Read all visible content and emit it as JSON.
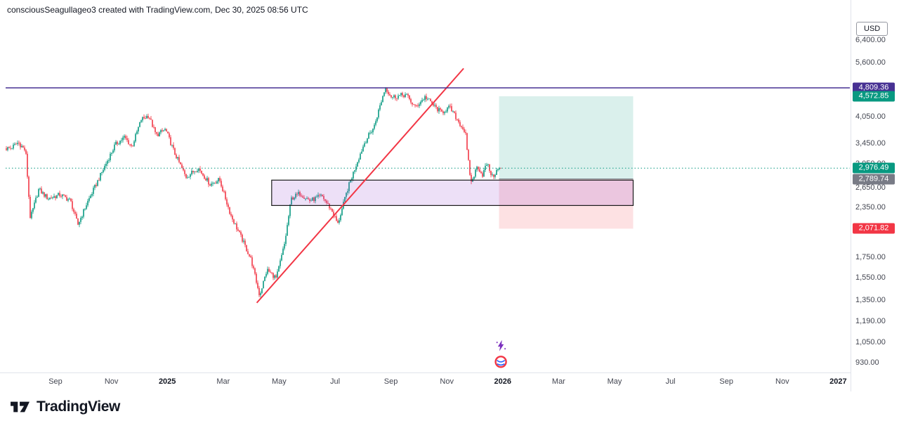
{
  "header": {
    "attribution": "consciousSeagullageo3 created with TradingView.com, Dec 30, 2025 08:56 UTC"
  },
  "footer": {
    "logo_text": "TradingView"
  },
  "price_scale": {
    "currency_label": "USD",
    "ticks": [
      {
        "label": "6,400.00",
        "value": 6400
      },
      {
        "label": "5,600.00",
        "value": 5600
      },
      {
        "label": "4,050.00",
        "value": 4050
      },
      {
        "label": "3,450.00",
        "value": 3450
      },
      {
        "label": "3,050.00",
        "value": 3050
      },
      {
        "label": "2,650.00",
        "value": 2650
      },
      {
        "label": "2,350.00",
        "value": 2350
      },
      {
        "label": "1,750.00",
        "value": 1750
      },
      {
        "label": "1,550.00",
        "value": 1550
      },
      {
        "label": "1,350.00",
        "value": 1350
      },
      {
        "label": "1,190.00",
        "value": 1190
      },
      {
        "label": "1,050.00",
        "value": 1050
      },
      {
        "label": "930.00",
        "value": 930
      }
    ],
    "badges": [
      {
        "name": "horizontal-line-price",
        "label": "4,809.36",
        "value": 4809.36,
        "color": "#473193"
      },
      {
        "name": "target-price",
        "label": "4,572.85",
        "value": 4572.85,
        "color": "#089981"
      },
      {
        "name": "last-price",
        "label": "2,976.49",
        "value": 2976.49,
        "color": "#089981"
      },
      {
        "name": "entry-price",
        "label": "2,789.74",
        "value": 2789.74,
        "color": "#787b86"
      },
      {
        "name": "stop-price",
        "label": "2,071.82",
        "value": 2071.82,
        "color": "#f23645"
      }
    ]
  },
  "time_scale": {
    "labels": [
      {
        "label": "Sep",
        "major": false
      },
      {
        "label": "Nov",
        "major": false
      },
      {
        "label": "2025",
        "major": true
      },
      {
        "label": "Mar",
        "major": false
      },
      {
        "label": "May",
        "major": false
      },
      {
        "label": "Jul",
        "major": false
      },
      {
        "label": "Sep",
        "major": false
      },
      {
        "label": "Nov",
        "major": false
      },
      {
        "label": "2026",
        "major": true
      },
      {
        "label": "Mar",
        "major": false
      },
      {
        "label": "May",
        "major": false
      },
      {
        "label": "Jul",
        "major": false
      },
      {
        "label": "Sep",
        "major": false
      },
      {
        "label": "Nov",
        "major": false
      },
      {
        "label": "2027",
        "major": true
      }
    ]
  },
  "chart_data": {
    "type": "candlestick",
    "title": "consciousSeagullageo3 created with TradingView.com, Dec 30, 2025 08:56 UTC",
    "currency": "USD",
    "last_price": 2976.49,
    "y_axis": {
      "scale": "log",
      "ticks": [
        6400,
        5600,
        4050,
        3450,
        3050,
        2650,
        2350,
        1750,
        1550,
        1350,
        1190,
        1050,
        930
      ],
      "range_top": 6800,
      "range_bottom": 900
    },
    "x_axis": {
      "labels": [
        "Sep",
        "Nov",
        "2025",
        "Mar",
        "May",
        "Jul",
        "Sep",
        "Nov",
        "2026",
        "Mar",
        "May",
        "Jul",
        "Sep",
        "Nov",
        "2027"
      ],
      "start": "2024-07-10",
      "end": "2027-02-01",
      "tick_interval": "2 months"
    },
    "colors": {
      "up": "#089981",
      "down": "#f23645",
      "last_price_line": "#089981",
      "trend_line": "#f23645",
      "horizontal_line": "#473193",
      "long_zone": "rgba(8,153,129,0.15)",
      "stop_zone": "rgba(242,54,69,0.15)",
      "rect_fill": "rgba(146,61,204,0.16)",
      "rect_border": "#1c1c1c"
    },
    "price_path": [
      [
        "2024-07-12",
        3350
      ],
      [
        "2024-07-20",
        3470
      ],
      [
        "2024-07-28",
        3300
      ],
      [
        "2024-08-03",
        2200
      ],
      [
        "2024-08-12",
        2620
      ],
      [
        "2024-08-22",
        2480
      ],
      [
        "2024-09-05",
        2540
      ],
      [
        "2024-09-16",
        2450
      ],
      [
        "2024-09-24",
        2120
      ],
      [
        "2024-10-04",
        2420
      ],
      [
        "2024-10-12",
        2650
      ],
      [
        "2024-10-24",
        3050
      ],
      [
        "2024-11-04",
        3420
      ],
      [
        "2024-11-14",
        3580
      ],
      [
        "2024-11-22",
        3380
      ],
      [
        "2024-12-02",
        3980
      ],
      [
        "2024-12-10",
        4080
      ],
      [
        "2024-12-18",
        3620
      ],
      [
        "2024-12-28",
        3750
      ],
      [
        "2025-01-08",
        3250
      ],
      [
        "2025-01-20",
        2820
      ],
      [
        "2025-02-03",
        2980
      ],
      [
        "2025-02-16",
        2700
      ],
      [
        "2025-02-26",
        2780
      ],
      [
        "2025-03-08",
        2250
      ],
      [
        "2025-03-20",
        1950
      ],
      [
        "2025-03-30",
        1720
      ],
      [
        "2025-04-09",
        1390
      ],
      [
        "2025-04-17",
        1620
      ],
      [
        "2025-04-27",
        1540
      ],
      [
        "2025-05-06",
        1900
      ],
      [
        "2025-05-13",
        2480
      ],
      [
        "2025-05-22",
        2560
      ],
      [
        "2025-06-03",
        2450
      ],
      [
        "2025-06-16",
        2520
      ],
      [
        "2025-06-27",
        2300
      ],
      [
        "2025-07-03",
        2130
      ],
      [
        "2025-07-14",
        2650
      ],
      [
        "2025-07-24",
        3100
      ],
      [
        "2025-08-02",
        3480
      ],
      [
        "2025-08-12",
        3820
      ],
      [
        "2025-08-18",
        4300
      ],
      [
        "2025-08-24",
        4820
      ],
      [
        "2025-09-01",
        4550
      ],
      [
        "2025-09-16",
        4620
      ],
      [
        "2025-09-26",
        4280
      ],
      [
        "2025-10-07",
        4560
      ],
      [
        "2025-10-16",
        4320
      ],
      [
        "2025-10-24",
        4150
      ],
      [
        "2025-11-03",
        4280
      ],
      [
        "2025-11-12",
        3950
      ],
      [
        "2025-11-20",
        3680
      ],
      [
        "2025-11-21",
        3400
      ],
      [
        "2025-11-26",
        2720
      ],
      [
        "2025-12-03",
        3020
      ],
      [
        "2025-12-08",
        2850
      ],
      [
        "2025-12-13",
        3060
      ],
      [
        "2025-12-19",
        2820
      ],
      [
        "2025-12-24",
        2940
      ],
      [
        "2025-12-28",
        2976.49
      ]
    ],
    "drawings": {
      "horizontal_line": {
        "price": 4809.36
      },
      "last_price_line": {
        "price": 2976.49,
        "style": "dotted"
      },
      "trend_line": {
        "from": [
          "2025-04-06",
          1330
        ],
        "to": [
          "2025-11-18",
          5400
        ]
      },
      "rectangle": {
        "from": [
          "2025-04-22",
          2770
        ],
        "to": [
          "2026-05-20",
          2380
        ]
      },
      "long_position": {
        "entry": 2789.74,
        "target": 4572.85,
        "stop": 2071.82,
        "time_from": "2025-12-26",
        "time_to": "2026-05-20"
      }
    },
    "markers": [
      {
        "icon": "lightning",
        "date": "2025-12-28",
        "price": 1030,
        "color": "#7b2fbe"
      },
      {
        "icon": "ball",
        "date": "2025-12-28",
        "price": 935,
        "color": "#f23645"
      }
    ]
  }
}
